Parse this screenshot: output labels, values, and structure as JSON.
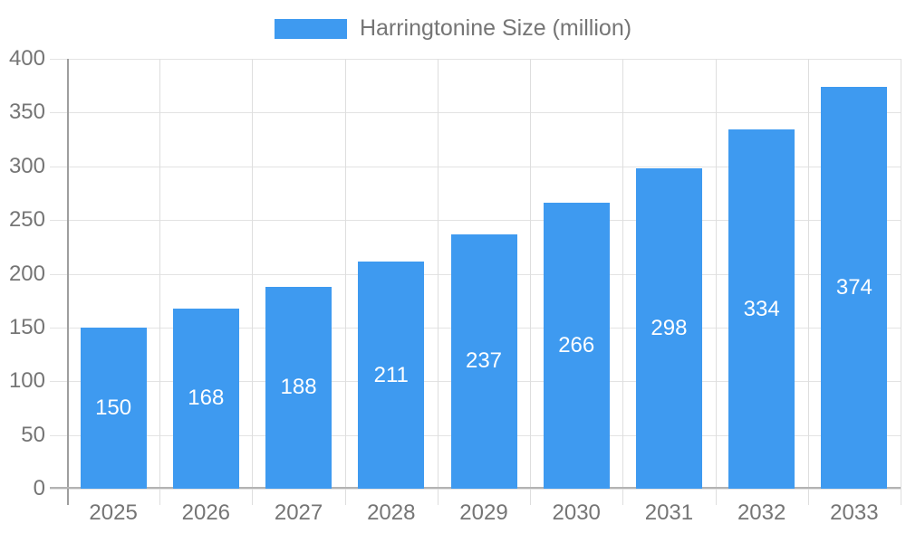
{
  "legend": {
    "label": "Harringtonine Size (million)",
    "swatch_color": "#3E9AF0"
  },
  "chart_data": {
    "type": "bar",
    "title": "Harringtonine Size (million)",
    "categories": [
      "2025",
      "2026",
      "2027",
      "2028",
      "2029",
      "2030",
      "2031",
      "2032",
      "2033"
    ],
    "values": [
      150,
      168,
      188,
      211,
      237,
      266,
      298,
      334,
      374
    ],
    "series_name": "Harringtonine Size (million)",
    "xlabel": "",
    "ylabel": "",
    "ylim": [
      0,
      400
    ],
    "yticks": [
      0,
      50,
      100,
      150,
      200,
      250,
      300,
      350,
      400
    ],
    "grid": true,
    "legend_position": "top",
    "bar_color": "#3E9AF0",
    "bar_label_color": "#ffffff",
    "axis_text_color": "#757575",
    "grid_color": "#e3e3e3",
    "axis_line_color": "#9e9e9e"
  }
}
